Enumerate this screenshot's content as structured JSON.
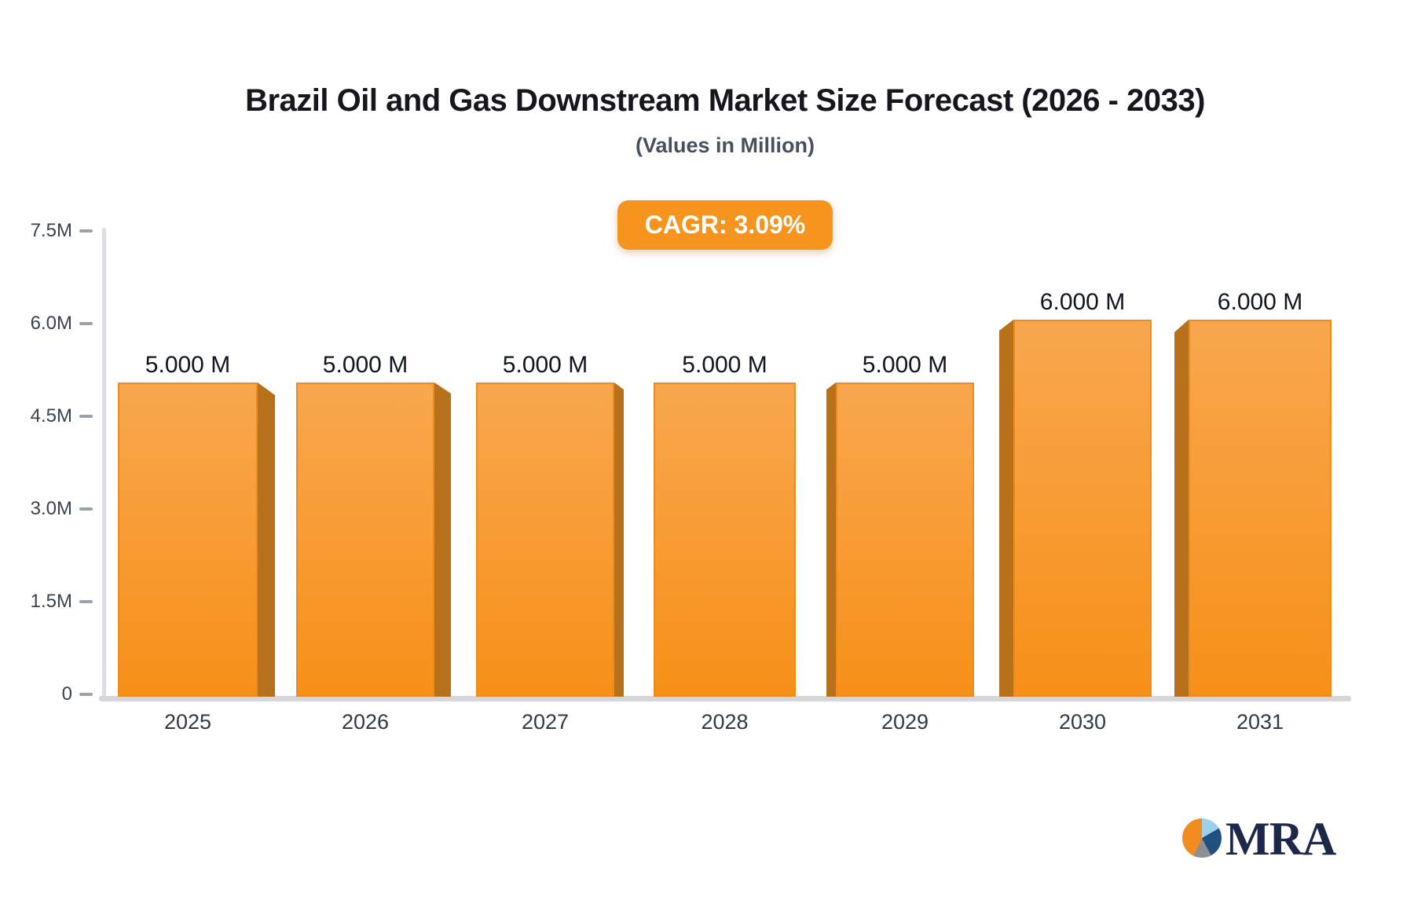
{
  "header": {
    "title": "Brazil Oil and Gas Downstream Market Size Forecast (2026 - 2033)",
    "subtitle": "(Values in Million)"
  },
  "badge": {
    "label": "CAGR: 3.09%",
    "bg_color": "#f7941e",
    "text_color": "#ffffff"
  },
  "chart_data": {
    "type": "bar",
    "title": "Brazil Oil and Gas Downstream Market Size Forecast (2026 - 2033)",
    "subtitle": "(Values in Million)",
    "unit": "Million",
    "categories": [
      "2025",
      "2026",
      "2027",
      "2028",
      "2029",
      "2030",
      "2031"
    ],
    "values": [
      5.0,
      5.0,
      5.0,
      5.0,
      5.0,
      6.0,
      6.0
    ],
    "value_labels": [
      "5.000 M",
      "5.000 M",
      "5.000 M",
      "5.000 M",
      "5.000 M",
      "6.000 M",
      "6.000 M"
    ],
    "annotation": "CAGR: 3.09%",
    "xlabel": "",
    "ylabel": "",
    "ylim": [
      0,
      7.5
    ],
    "yticks": [
      "7.5M",
      "6.0M",
      "4.5M",
      "3.0M",
      "1.5M",
      "0"
    ],
    "grid": false,
    "legend": false,
    "bar_color": "#f7941e",
    "bar_gradient_top": "#f8a74e",
    "bar_side_color": "#b8711b",
    "style": "pseudo-3d columns, side shading faces away from center"
  },
  "axis_colors": {
    "line": "#dbdde2",
    "tick": "#9aa2ad",
    "tick_text": "#39434f",
    "x_text": "#2f3a47"
  },
  "logo": {
    "text": "MRA",
    "icon": "pie-chart-icon",
    "pie_colors": [
      "#f28b20",
      "#9ccfe9",
      "#20507f",
      "#8e8e96"
    ],
    "text_color": "#1c2749"
  }
}
